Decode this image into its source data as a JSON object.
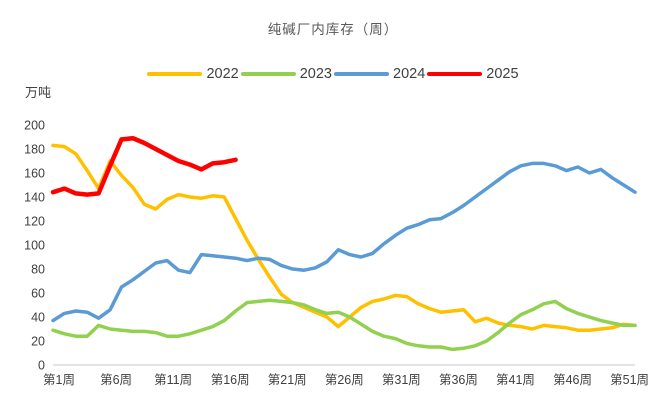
{
  "page": {
    "title": "纯碱厂内库存（周）",
    "unit_label": "万吨"
  },
  "chart_data": {
    "type": "line",
    "title": "纯碱厂内库存（周）",
    "ylabel": "万吨",
    "ylim": [
      0,
      200
    ],
    "y_tick_step": 20,
    "weeks_total": 52,
    "grid": false,
    "legend_position": "top",
    "axis_color": "#d9d9d9",
    "text_color": "#404040",
    "x_ticks": [
      {
        "week": 1,
        "label": "第1周"
      },
      {
        "week": 6,
        "label": "第6周"
      },
      {
        "week": 11,
        "label": "第11周"
      },
      {
        "week": 16,
        "label": "第16周"
      },
      {
        "week": 21,
        "label": "第21周"
      },
      {
        "week": 26,
        "label": "第26周"
      },
      {
        "week": 31,
        "label": "第31周"
      },
      {
        "week": 36,
        "label": "第36周"
      },
      {
        "week": 41,
        "label": "第41周"
      },
      {
        "week": 46,
        "label": "第46周"
      },
      {
        "week": 51,
        "label": "第51周"
      }
    ],
    "series": [
      {
        "name": "2022",
        "color": "#FFC000",
        "stroke_width": 3.5,
        "start_week": 1,
        "values": [
          183,
          182,
          176,
          162,
          147,
          170,
          158,
          148,
          134,
          130,
          138,
          142,
          140,
          139,
          141,
          140,
          122,
          104,
          88,
          73,
          59,
          52,
          48,
          44,
          40,
          32,
          40,
          48,
          53,
          55,
          58,
          57,
          51,
          47,
          44,
          45,
          46,
          36,
          39,
          35,
          33,
          32,
          30,
          33,
          32,
          31,
          29,
          29,
          30,
          31,
          34,
          33
        ]
      },
      {
        "name": "2023",
        "color": "#92D050",
        "stroke_width": 3.5,
        "start_week": 1,
        "values": [
          29,
          26,
          24,
          24,
          33,
          30,
          29,
          28,
          28,
          27,
          24,
          24,
          26,
          29,
          32,
          37,
          45,
          52,
          53,
          54,
          53,
          52,
          50,
          46,
          43,
          44,
          40,
          34,
          28,
          24,
          22,
          18,
          16,
          15,
          15,
          13,
          14,
          16,
          20,
          27,
          35,
          42,
          46,
          51,
          53,
          47,
          43,
          40,
          37,
          35,
          33,
          33
        ]
      },
      {
        "name": "2024",
        "color": "#5B9BD5",
        "stroke_width": 3.5,
        "start_week": 1,
        "values": [
          37,
          43,
          45,
          44,
          39,
          46,
          65,
          71,
          78,
          85,
          87,
          79,
          77,
          92,
          91,
          90,
          89,
          87,
          89,
          88,
          83,
          80,
          79,
          81,
          86,
          96,
          92,
          90,
          93,
          101,
          108,
          114,
          117,
          121,
          122,
          127,
          133,
          140,
          147,
          154,
          161,
          166,
          168,
          168,
          166,
          162,
          165,
          160,
          163,
          156,
          150,
          144
        ]
      },
      {
        "name": "2025",
        "color": "#FF0000",
        "stroke_width": 4.5,
        "start_week": 1,
        "values": [
          144,
          147,
          143,
          142,
          143,
          166,
          188,
          189,
          185,
          180,
          175,
          170,
          167,
          163,
          168,
          169,
          171
        ]
      }
    ]
  }
}
